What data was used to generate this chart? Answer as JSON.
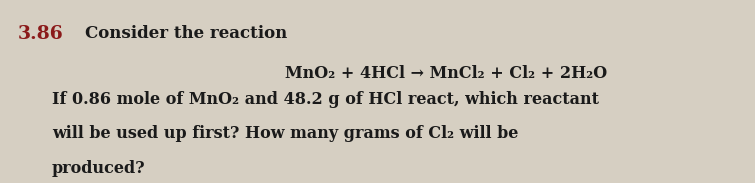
{
  "problem_number": "3.86",
  "problem_number_color": "#8B1A1A",
  "header_text": "Consider the reaction",
  "equation_line": "MnO₂ + 4HCl → MnCl₂ + Cl₂ + 2H₂O",
  "body_text_line1": "If 0.86 mole of MnO₂ and 48.2 g of HCl react, which reactant",
  "body_text_line2": "will be used up first? How many grams of Cl₂ will be",
  "body_text_line3": "produced?",
  "background_color": "#d6cfc2",
  "text_color": "#1a1a1a",
  "font_size_number": 13.5,
  "font_size_header": 12,
  "font_size_equation": 11.5,
  "font_size_body": 11.5,
  "fig_width": 7.55,
  "fig_height": 1.83,
  "dpi": 100
}
